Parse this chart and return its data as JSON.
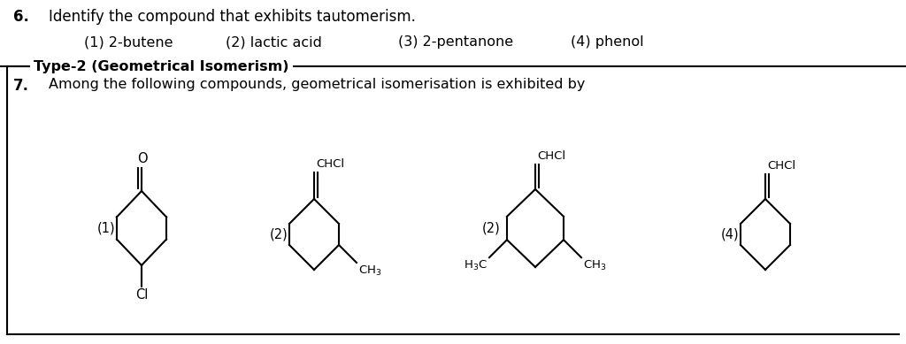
{
  "background_color": "#ffffff",
  "q6_number": "6.",
  "q6_text": "Identify the compound that exhibits tautomerism.",
  "q6_options": [
    "(1) 2-butene",
    "(2) lactic acid",
    "(3) 2-pentanone",
    "(4) phenol"
  ],
  "section_title": "Type-2 (Geometrical Isomerism)",
  "q7_number": "7.",
  "q7_text": "Among the following compounds, geometrical isomerisation is exhibited by"
}
